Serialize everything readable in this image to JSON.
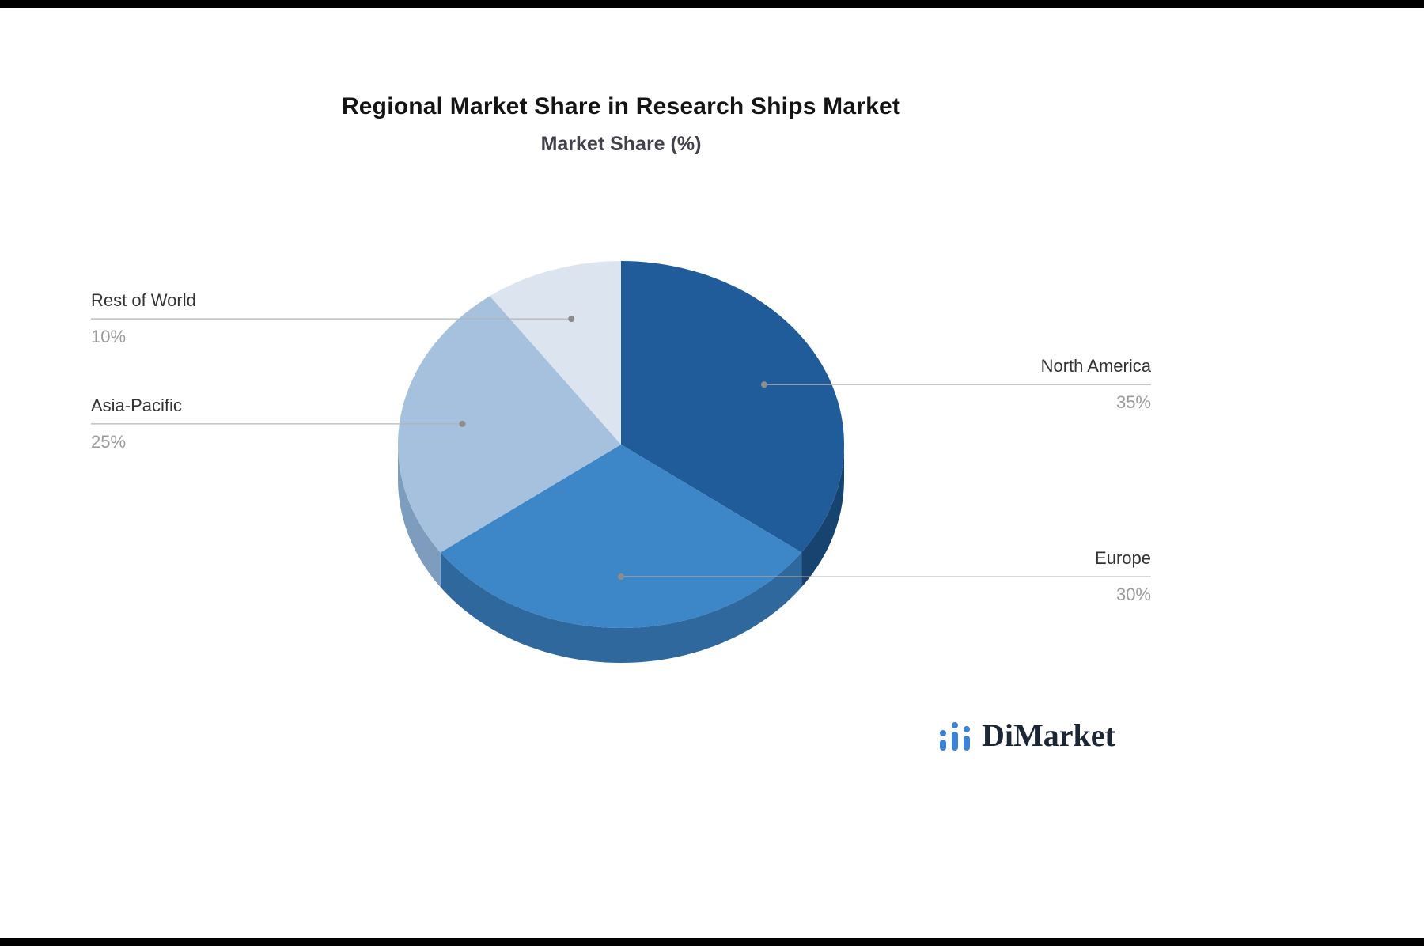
{
  "page": {
    "background": "#ffffff",
    "top_border_color": "#000000",
    "bottom_border_color": "#000000"
  },
  "chart_data": {
    "type": "pie",
    "style": "3d-pie",
    "title": "Regional Market Share in Research Ships Market",
    "subtitle": "Market Share (%)",
    "unit": "%",
    "start_angle_deg": 0,
    "direction": "clockwise",
    "legend_position": "none",
    "label_style": "outside-leader-lines",
    "slices": [
      {
        "label": "North America",
        "value": 35,
        "value_label": "35%",
        "color": "#1f5c99",
        "side_color": "#16436f",
        "label_side": "right"
      },
      {
        "label": "Europe",
        "value": 30,
        "value_label": "30%",
        "color": "#3d86c8",
        "side_color": "#2e689c",
        "label_side": "right"
      },
      {
        "label": "Asia-Pacific",
        "value": 25,
        "value_label": "25%",
        "color": "#a6c1de",
        "side_color": "#7e9cbd",
        "label_side": "left"
      },
      {
        "label": "Rest of World",
        "value": 10,
        "value_label": "10%",
        "color": "#dce4ef",
        "side_color": "#b4c3d6",
        "label_side": "left"
      }
    ],
    "label_text_color": "#333333",
    "value_text_color": "#9b9b9b",
    "leader_line_color": "#b3b3b3",
    "leader_dot_color": "#8c8c8c"
  },
  "branding": {
    "logo_text": "DiMarket",
    "logo_icon": "bar-chart-icon",
    "logo_icon_color": "#3c82d6",
    "logo_text_color": "#1c2636"
  }
}
